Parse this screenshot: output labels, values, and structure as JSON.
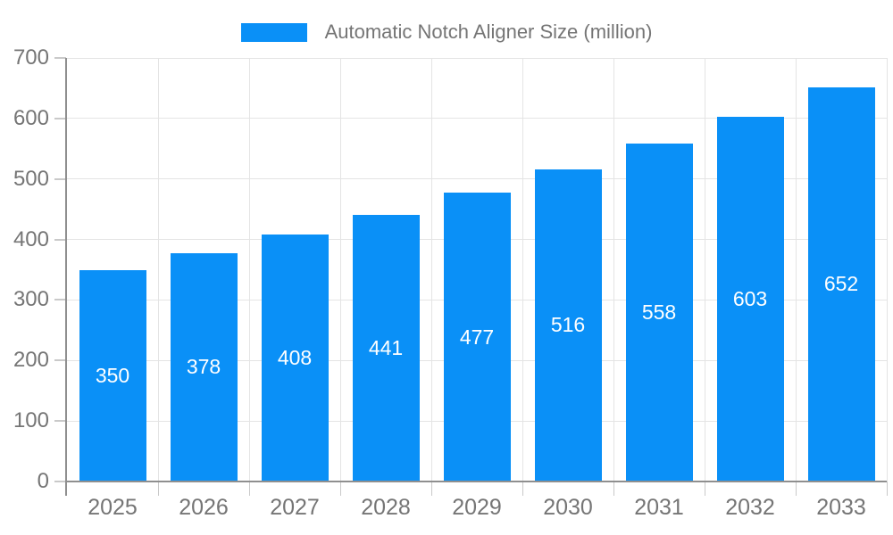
{
  "chart_data": {
    "type": "bar",
    "title": "Automatic Notch Aligner Size (million)",
    "legend": "Automatic Notch Aligner Size (million)",
    "legend_position": "top",
    "categories": [
      "2025",
      "2026",
      "2027",
      "2028",
      "2029",
      "2030",
      "2031",
      "2032",
      "2033"
    ],
    "values": [
      350,
      378,
      408,
      441,
      477,
      516,
      558,
      603,
      652
    ],
    "xlabel": "",
    "ylabel": "",
    "ylim": [
      0,
      700
    ],
    "yticks": [
      0,
      100,
      200,
      300,
      400,
      500,
      600,
      700
    ],
    "grid": true,
    "bar_labels_inside": true,
    "colors": {
      "bar": "#0a90f7",
      "axis_label": "#757575",
      "bar_label": "#ffffff",
      "gridline": "#e4e4e4",
      "axis_line": "#8f8f8f",
      "tick": "#c9c9c9",
      "background": "#ffffff"
    }
  }
}
